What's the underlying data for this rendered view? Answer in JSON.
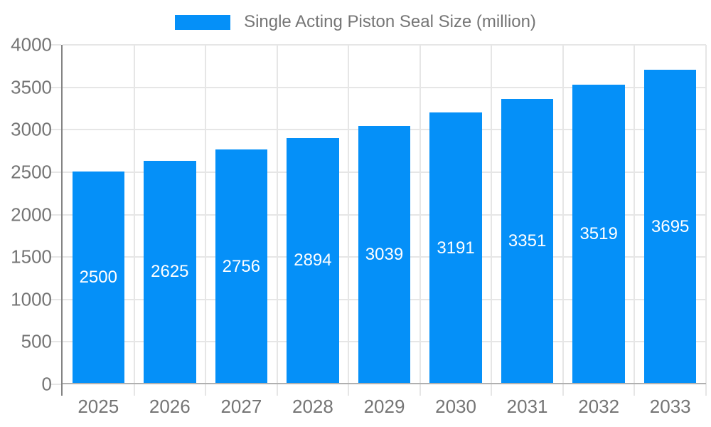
{
  "legend": {
    "label": "Single Acting Piston Seal Size (million)"
  },
  "chart_data": {
    "type": "bar",
    "title": "Single Acting Piston Seal Size (million)",
    "series_name": "Single Acting Piston Seal Size (million)",
    "categories": [
      "2025",
      "2026",
      "2027",
      "2028",
      "2029",
      "2030",
      "2031",
      "2032",
      "2033"
    ],
    "values": [
      2500,
      2625,
      2756,
      2894,
      3039,
      3191,
      3351,
      3519,
      3695
    ],
    "value_labels": [
      "2500",
      "2625",
      "2756",
      "2894",
      "3039",
      "3191",
      "3351",
      "3519",
      "3695"
    ],
    "xlabel": "",
    "ylabel": "",
    "ylim": [
      0,
      4000
    ],
    "yticks": [
      0,
      500,
      1000,
      1500,
      2000,
      2500,
      3000,
      3500,
      4000
    ],
    "grid": true,
    "legend_position": "top-center",
    "styles": {
      "bar_color": "#0590F8",
      "value_label_color": "#FFFFFF",
      "axis_text_color": "#757575",
      "grid_color": "#E6E6E6",
      "baseline_color": "#B0B0B0",
      "y_axis_line_color": "#848484",
      "background_color": "#FFFFFF"
    }
  }
}
